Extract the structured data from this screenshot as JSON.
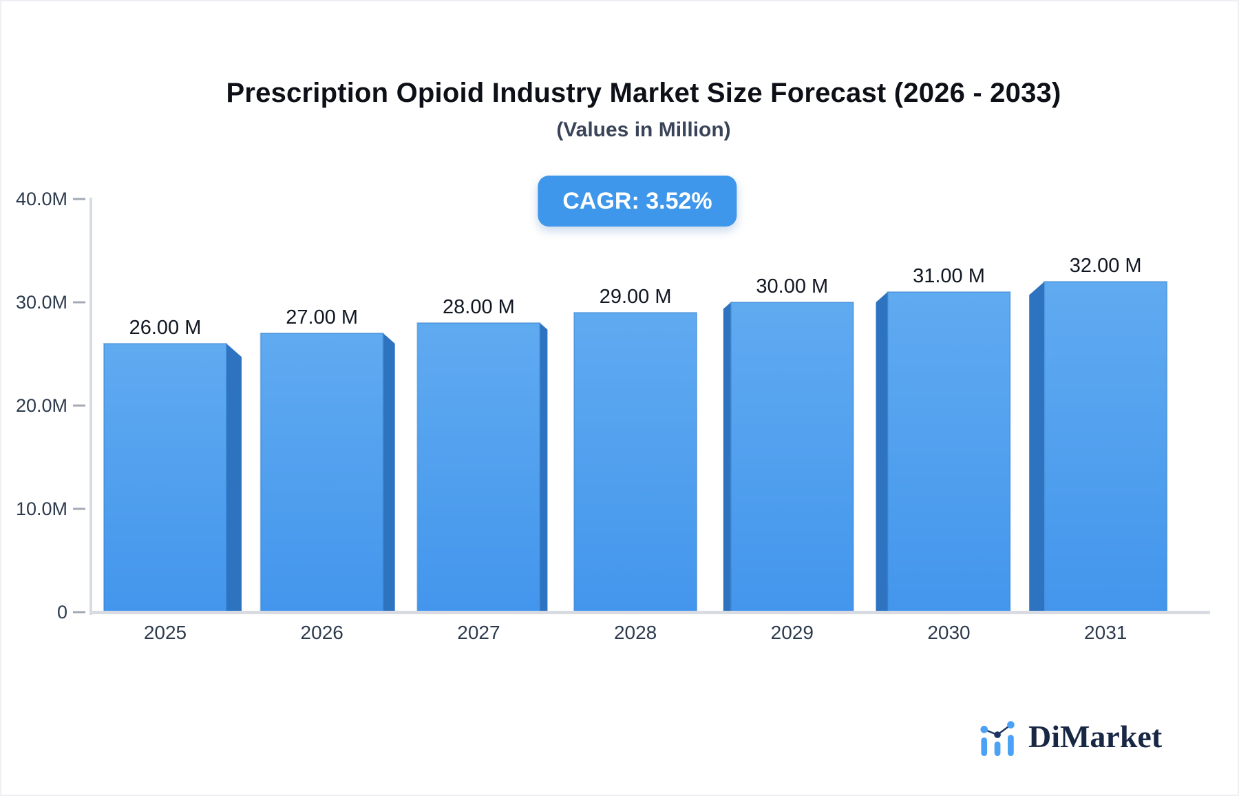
{
  "chart_data": {
    "type": "bar",
    "style": "3d-perspective-single-series",
    "title": "Prescription Opioid Industry Market Size Forecast (2026 - 2033)",
    "subtitle": "(Values in Million)",
    "cagr_badge": "CAGR: 3.52%",
    "categories": [
      "2025",
      "2026",
      "2027",
      "2028",
      "2029",
      "2030",
      "2031"
    ],
    "values_millions": [
      26,
      27,
      28,
      29,
      30,
      31,
      32
    ],
    "value_labels": [
      "26.00 M",
      "27.00 M",
      "28.00 M",
      "29.00 M",
      "30.00 M",
      "31.00 M",
      "32.00 M"
    ],
    "xlabel": "",
    "ylabel": "",
    "ylim_millions": [
      0,
      40
    ],
    "ytick_values_millions": [
      0,
      10,
      20,
      30,
      40
    ],
    "ytick_labels": [
      "0",
      "10.0M",
      "20.0M",
      "30.0M",
      "40.0M"
    ],
    "grid": false,
    "legend": false
  },
  "logo": {
    "text": "DiMarket",
    "icon": "mini-bar-chart-icon"
  },
  "colors": {
    "bar_face_top": "#60AAF0",
    "bar_face_bottom": "#4396ED",
    "bar_face_edge": "#2F7CC9",
    "bar_side": "#2E73BF",
    "badge_bg": "#3E97EA",
    "badge_text": "#FFFFFF",
    "axis": "#D8DCE2",
    "tick": "#A3AAB5",
    "axis_label": "#2C3A4E",
    "value_label": "#111722",
    "title": "#0D1117",
    "subtitle": "#3A4458",
    "logo_text": "#182743",
    "logo_blue": "#4BA1F6",
    "logo_navy": "#1D3461"
  }
}
